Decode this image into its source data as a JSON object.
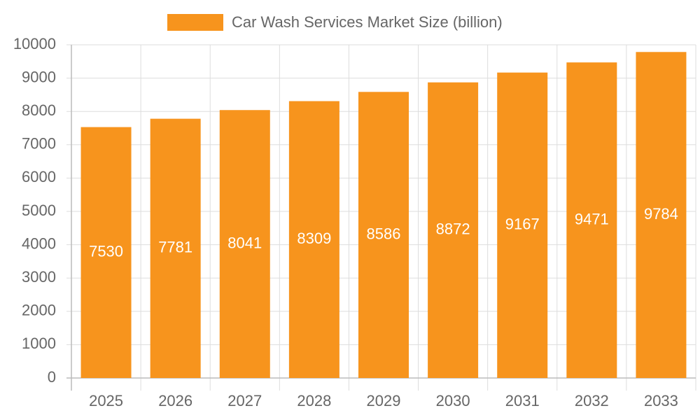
{
  "chart_data": {
    "type": "bar",
    "categories": [
      "2025",
      "2026",
      "2027",
      "2028",
      "2029",
      "2030",
      "2031",
      "2032",
      "2033"
    ],
    "series": [
      {
        "name": "Car Wash Services Market Size (billion)",
        "color": "#f7941d",
        "values": [
          7530,
          7781,
          8041,
          8309,
          8586,
          8872,
          9167,
          9471,
          9784
        ]
      }
    ],
    "ylim": [
      0,
      10000
    ],
    "yticks": [
      0,
      1000,
      2000,
      3000,
      4000,
      5000,
      6000,
      7000,
      8000,
      9000,
      10000
    ],
    "grid": true,
    "legend": "top",
    "data_labels": true
  }
}
